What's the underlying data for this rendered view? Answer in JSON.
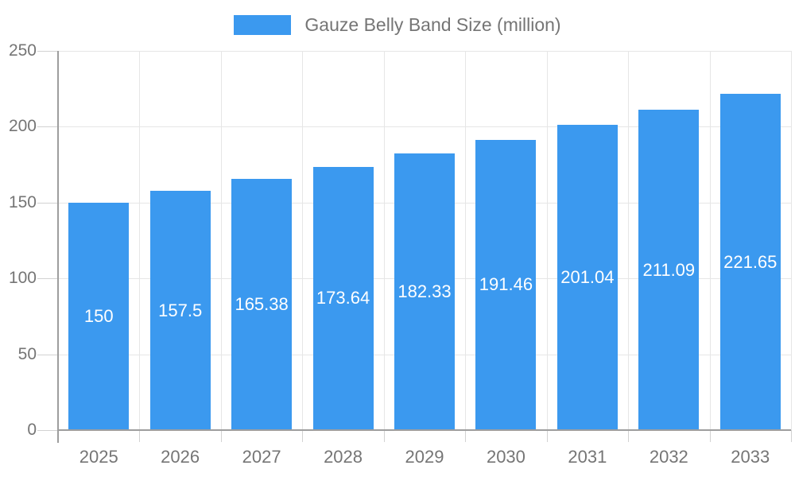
{
  "legend": {
    "label": "Gauze Belly Band Size (million)",
    "swatch_color": "#3b99ef"
  },
  "chart_data": {
    "type": "bar",
    "title": "Gauze Belly Band Size (million)",
    "categories": [
      "2025",
      "2026",
      "2027",
      "2028",
      "2029",
      "2030",
      "2031",
      "2032",
      "2033"
    ],
    "values": [
      150,
      157.5,
      165.38,
      173.64,
      182.33,
      191.46,
      201.04,
      211.09,
      221.65
    ],
    "value_labels": [
      "150",
      "157.5",
      "165.38",
      "173.64",
      "182.33",
      "191.46",
      "201.04",
      "211.09",
      "221.65"
    ],
    "series": [
      {
        "name": "Gauze Belly Band Size (million)",
        "values": [
          150,
          157.5,
          165.38,
          173.64,
          182.33,
          191.46,
          201.04,
          211.09,
          221.65
        ]
      }
    ],
    "xlabel": "",
    "ylabel": "",
    "ylim": [
      0,
      250
    ],
    "yticks": [
      0,
      50,
      100,
      150,
      200,
      250
    ],
    "grid": true,
    "legend_position": "top",
    "colors": {
      "bar": "#3b99ef",
      "axis": "#9e9e9e",
      "grid": "#e6e6e6",
      "tick": "#d2d2d2",
      "axis_label": "#757575",
      "value_label": "#ffffff"
    }
  }
}
